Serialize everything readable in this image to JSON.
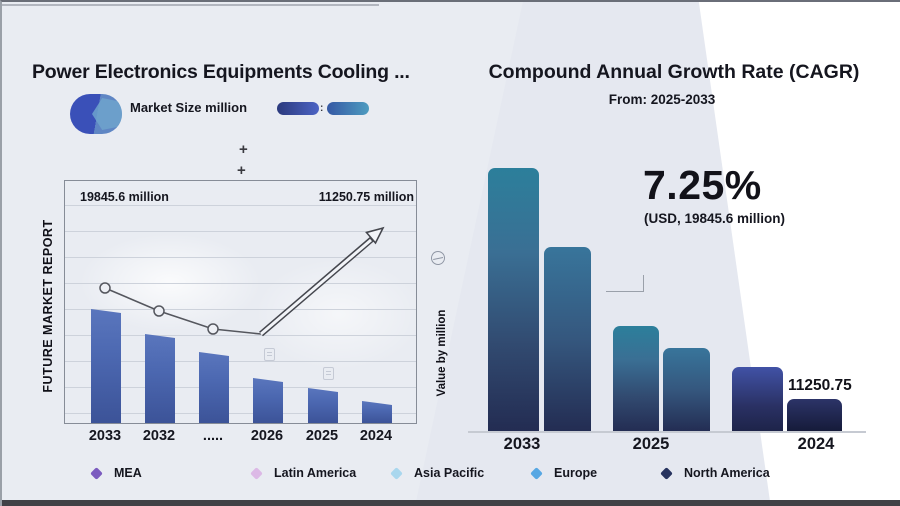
{
  "header": {
    "left_title": "Power Electronics Equipments Cooling ...",
    "market_size_label": "Market Size million",
    "ratio_separator": ":"
  },
  "left_chart": {
    "start_value_label": "19845.6 million",
    "end_value_label": "11250.75 million",
    "watermark": "FUTURE MARKET REPORT",
    "value_axis_label": "Value by million",
    "plus_marks": [
      "+",
      "+"
    ]
  },
  "right_panel": {
    "title": "Compound Annual Growth Rate (CAGR)",
    "subtitle": "From: 2025-2033",
    "cagr_value": "7.25%",
    "cagr_detail": "(USD, 19845.6 million)",
    "end_value_label": "11250.75"
  },
  "legend": {
    "items": [
      {
        "label": "MEA",
        "color": "#7b5bbf"
      },
      {
        "label": "Latin America",
        "color": "#dcb9e6"
      },
      {
        "label": "Asia Pacific",
        "color": "#a9d7ee"
      },
      {
        "label": "Europe",
        "color": "#57a7e3"
      },
      {
        "label": "North America",
        "color": "#27335f"
      }
    ]
  },
  "chart_data": [
    {
      "type": "bar",
      "title": "Power Electronics Equipments Cooling ...",
      "legend": "Market Size million",
      "categories": [
        "2033",
        "2032",
        ".....",
        "2026",
        "2025",
        "2024"
      ],
      "values_relative_pct": [
        46.7,
        36.5,
        29.1,
        18.4,
        14.3,
        9.0
      ],
      "start_value": "19845.6 million",
      "end_value": "11250.75 million",
      "ylabel_left": "FUTURE MARKET REPORT",
      "ylabel_right": "Value by million",
      "annotations": "declining bars with trend line dropping 2033-2026 then outlined arrow rising to top right",
      "grid": true,
      "bar_color_top": "#5a76bd",
      "bar_color_bottom": "#3c5398"
    },
    {
      "type": "bar",
      "title": "Compound Annual Growth Rate (CAGR)",
      "subtitle": "From: 2025-2033",
      "categories": [
        "2033",
        "2025",
        "2024"
      ],
      "series": [
        {
          "name": "primary",
          "values_relative_pct": [
            100,
            40,
            24.5
          ]
        },
        {
          "name": "secondary",
          "values_relative_pct": [
            70,
            32,
            12.5
          ]
        }
      ],
      "cagr": "7.25%",
      "cagr_detail": "(USD, 19845.6 million)",
      "end_value": "11250.75",
      "bar_colors": [
        "#2c7f9b",
        "#232c52",
        "#4152a6",
        "#151a38"
      ],
      "grid": false
    }
  ]
}
